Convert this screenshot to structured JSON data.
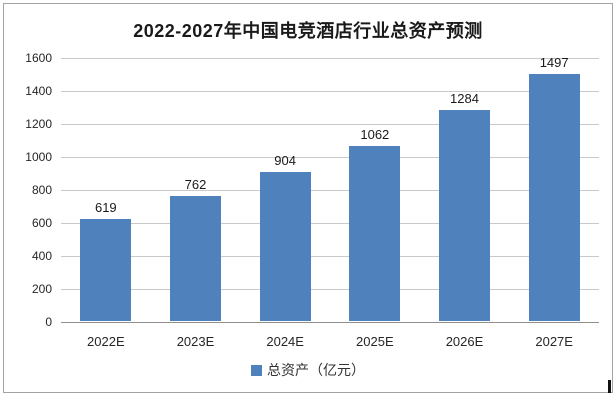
{
  "chart_data": {
    "type": "bar",
    "title": "2022-2027年中国电竞酒店行业总资产预测",
    "categories": [
      "2022E",
      "2023E",
      "2024E",
      "2025E",
      "2026E",
      "2027E"
    ],
    "series": [
      {
        "name": "总资产（亿元）",
        "values": [
          619,
          762,
          904,
          1062,
          1284,
          1497
        ]
      }
    ],
    "xlabel": "",
    "ylabel": "",
    "ylim": [
      0,
      1600
    ],
    "yticks": [
      0,
      200,
      400,
      600,
      800,
      1000,
      1200,
      1400,
      1600
    ],
    "grid": true,
    "value_labels_shown": true,
    "legend_position": "bottom",
    "bar_color": "#4F81BD"
  },
  "legend": {
    "marker_icon": "legend-square-marker",
    "label": "总资产（亿元）",
    "marker_color": "#4F81BD"
  },
  "colors": {
    "bar": "#4F81BD",
    "gridline": "#c9c9c9",
    "axis_baseline": "#8f8f8f",
    "frame_border": "#a3a3a3",
    "text": "#262626",
    "background": "#ffffff"
  }
}
